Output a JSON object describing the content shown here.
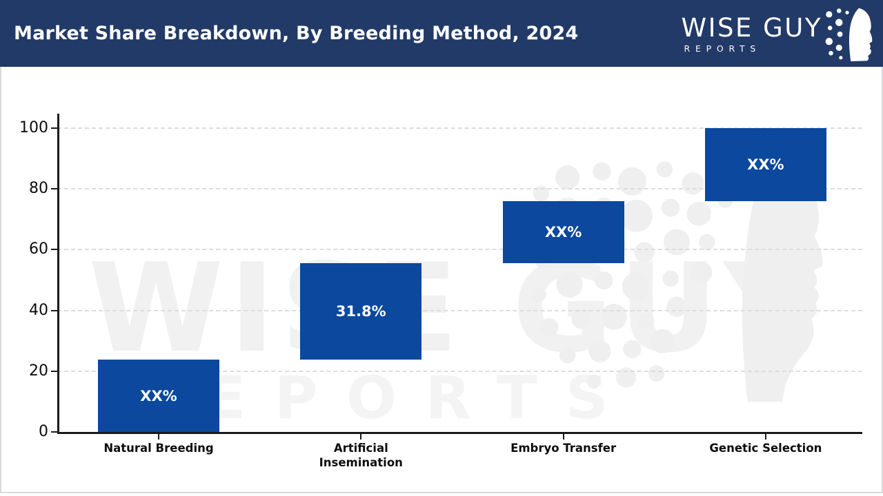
{
  "header": {
    "title": "Market Share Breakdown, By Breeding Method, 2024",
    "logo": {
      "wordmark": "WISE GUY",
      "subtitle": "REPORTS"
    },
    "bg_color": "#223a67"
  },
  "watermark": {
    "wordmark": "WISE GUY",
    "subtitle": "REPORTS"
  },
  "chart_data": {
    "type": "bar",
    "subtype": "floating-waterfall",
    "title": "Market Share Breakdown, By Breeding Method, 2024",
    "categories": [
      "Natural Breeding",
      "Artificial Insemination",
      "Embryo Transfer",
      "Genetic Selection"
    ],
    "bars": [
      {
        "category": "Natural Breeding",
        "start": 0,
        "end": 23.8,
        "label": "XX%"
      },
      {
        "category": "Artificial Insemination",
        "start": 23.8,
        "end": 55.6,
        "label": "31.8%"
      },
      {
        "category": "Embryo Transfer",
        "start": 55.6,
        "end": 75.9,
        "label": "XX%"
      },
      {
        "category": "Genetic Selection",
        "start": 75.9,
        "end": 100,
        "label": "XX%"
      }
    ],
    "ylim": [
      0,
      100
    ],
    "yticks": [
      0,
      20,
      40,
      60,
      80,
      100
    ],
    "grid": "horizontal-dashed",
    "legend": "none",
    "bar_color": "#0b489e",
    "bar_label_color": "#ffffff",
    "axis_color": "#1a1a1a"
  }
}
